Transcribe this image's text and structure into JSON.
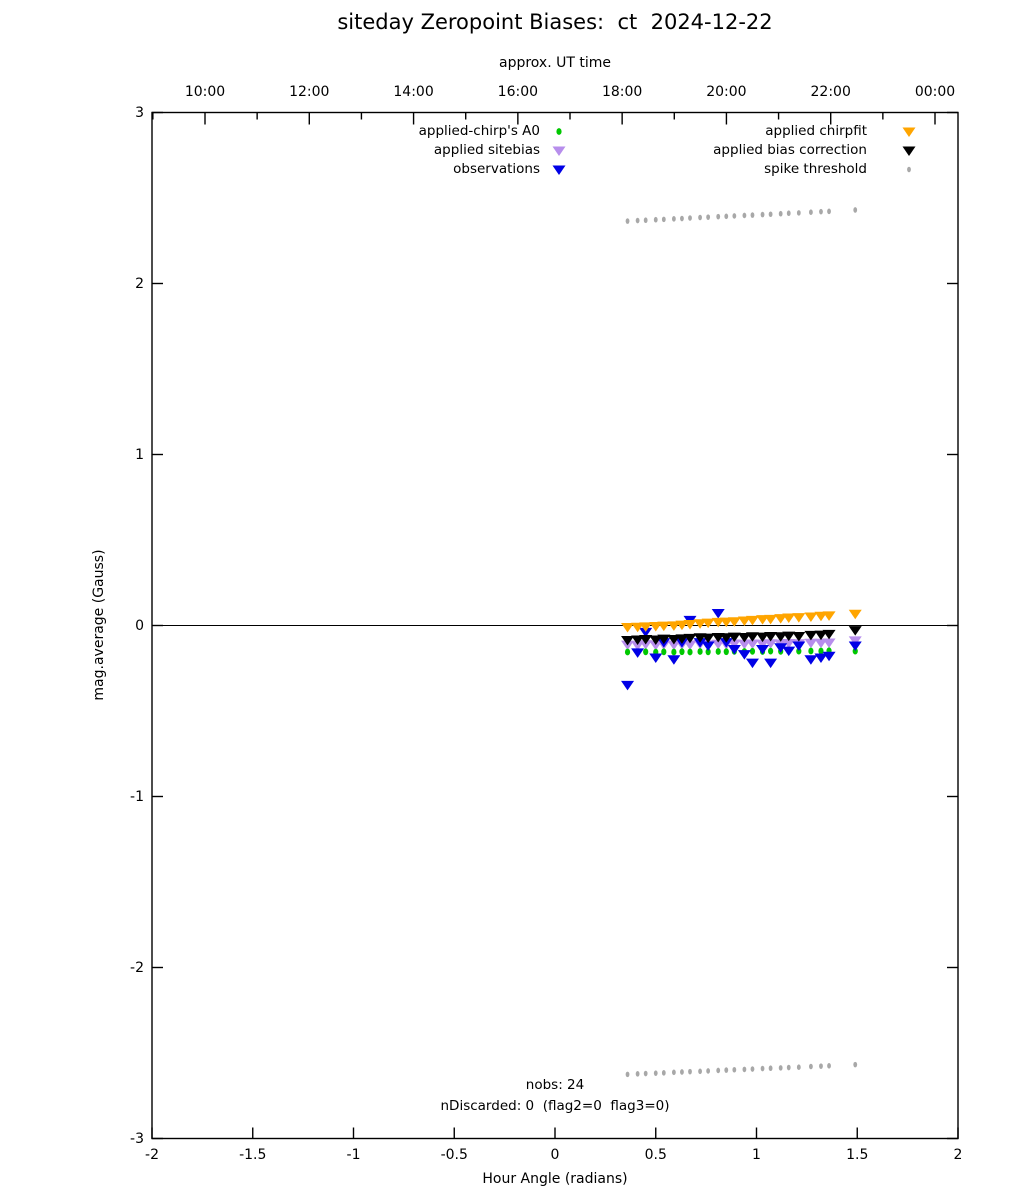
{
  "chart_data": {
    "type": "scatter",
    "title": "siteday Zeropoint Biases:  ct  2024-12-22",
    "xlabel": "Hour Angle (radians)",
    "ylabel": "mag.average (Gauss)",
    "x2label": "approx. UT time",
    "xlim": [
      -2,
      2
    ],
    "ylim": [
      -3,
      3
    ],
    "grid": "off",
    "legend_position": "top-inside",
    "x_ticks": [
      -2,
      -1.5,
      -1,
      -0.5,
      0,
      0.5,
      1,
      1.5,
      2
    ],
    "y_ticks": [
      -3,
      -2,
      -1,
      0,
      1,
      2,
      3
    ],
    "x2_ticks": [
      "10:00",
      "12:00",
      "14:00",
      "16:00",
      "18:00",
      "20:00",
      "22:00",
      "00:00"
    ],
    "annotations": [
      "nobs: 24",
      "nDiscarded: 0  (flag2=0  flag3=0)"
    ],
    "nobs": 24,
    "nDiscarded": 0,
    "x": [
      0.36,
      0.41,
      0.45,
      0.5,
      0.54,
      0.59,
      0.63,
      0.67,
      0.72,
      0.76,
      0.81,
      0.85,
      0.89,
      0.94,
      0.98,
      1.03,
      1.07,
      1.12,
      1.16,
      1.21,
      1.27,
      1.32,
      1.36,
      1.49
    ],
    "series": [
      {
        "name": "applied sitebias",
        "marker": "triangle-down",
        "color": "#B78EEC",
        "values": [
          -0.115,
          -0.118,
          -0.112,
          -0.116,
          -0.113,
          -0.115,
          -0.112,
          -0.114,
          -0.11,
          -0.113,
          -0.11,
          -0.112,
          -0.108,
          -0.11,
          -0.108,
          -0.11,
          -0.107,
          -0.108,
          -0.105,
          -0.107,
          -0.104,
          -0.104,
          -0.102,
          -0.09
        ]
      },
      {
        "name": "applied-chirp's A0",
        "marker": "dot",
        "color": "#00C800",
        "values": [
          -0.155,
          -0.158,
          -0.154,
          -0.156,
          -0.154,
          -0.155,
          -0.153,
          -0.155,
          -0.152,
          -0.154,
          -0.152,
          -0.153,
          -0.151,
          -0.152,
          -0.151,
          -0.152,
          -0.15,
          -0.151,
          -0.15,
          -0.15,
          -0.149,
          -0.149,
          -0.148,
          -0.15
        ]
      },
      {
        "name": "observations",
        "marker": "triangle-down",
        "color": "#0000E6",
        "values": [
          -0.35,
          -0.16,
          -0.04,
          -0.19,
          -0.1,
          -0.2,
          -0.1,
          0.03,
          -0.1,
          -0.12,
          0.07,
          -0.1,
          -0.14,
          -0.17,
          -0.22,
          -0.14,
          -0.22,
          -0.13,
          -0.15,
          -0.12,
          -0.2,
          -0.19,
          -0.18,
          -0.12
        ]
      },
      {
        "name": "applied bias correction",
        "marker": "triangle-down",
        "color": "#000000",
        "values": [
          -0.088,
          -0.085,
          -0.082,
          -0.085,
          -0.08,
          -0.082,
          -0.078,
          -0.075,
          -0.072,
          -0.074,
          -0.07,
          -0.072,
          -0.068,
          -0.07,
          -0.066,
          -0.068,
          -0.064,
          -0.066,
          -0.062,
          -0.064,
          -0.058,
          -0.056,
          -0.052,
          -0.03
        ]
      },
      {
        "name": "applied chirpfit",
        "marker": "triangle-down",
        "color": "#FFA500",
        "values": [
          -0.012,
          -0.01,
          -0.008,
          -0.006,
          -0.004,
          -0.002,
          0.002,
          0.006,
          0.01,
          0.014,
          0.018,
          0.02,
          0.022,
          0.026,
          0.03,
          0.034,
          0.036,
          0.04,
          0.044,
          0.046,
          0.05,
          0.054,
          0.056,
          0.066
        ]
      },
      {
        "name": "spike threshold",
        "marker": "small-dot",
        "color": "#A8A8A8",
        "values_upper": [
          2.365,
          2.368,
          2.37,
          2.373,
          2.375,
          2.378,
          2.38,
          2.383,
          2.386,
          2.388,
          2.391,
          2.393,
          2.395,
          2.398,
          2.4,
          2.403,
          2.405,
          2.408,
          2.411,
          2.413,
          2.417,
          2.42,
          2.422,
          2.43
        ],
        "values_lower": [
          -2.625,
          -2.622,
          -2.62,
          -2.618,
          -2.616,
          -2.613,
          -2.611,
          -2.609,
          -2.607,
          -2.605,
          -2.602,
          -2.6,
          -2.598,
          -2.596,
          -2.594,
          -2.591,
          -2.589,
          -2.587,
          -2.585,
          -2.583,
          -2.579,
          -2.577,
          -2.575,
          -2.568
        ]
      }
    ]
  },
  "legend": {
    "left": [
      {
        "label": "applied-chirp's A0",
        "marker": "dot",
        "color": "#00C800"
      },
      {
        "label": "applied sitebias",
        "marker": "triangle-down",
        "color": "#B78EEC"
      },
      {
        "label": "observations",
        "marker": "triangle-down",
        "color": "#0000E6"
      }
    ],
    "right": [
      {
        "label": "applied chirpfit",
        "marker": "triangle-down",
        "color": "#FFA500"
      },
      {
        "label": "applied bias correction",
        "marker": "triangle-down",
        "color": "#000000"
      },
      {
        "label": "spike threshold",
        "marker": "small-dot",
        "color": "#A8A8A8"
      }
    ]
  },
  "frame_color": "#000000"
}
